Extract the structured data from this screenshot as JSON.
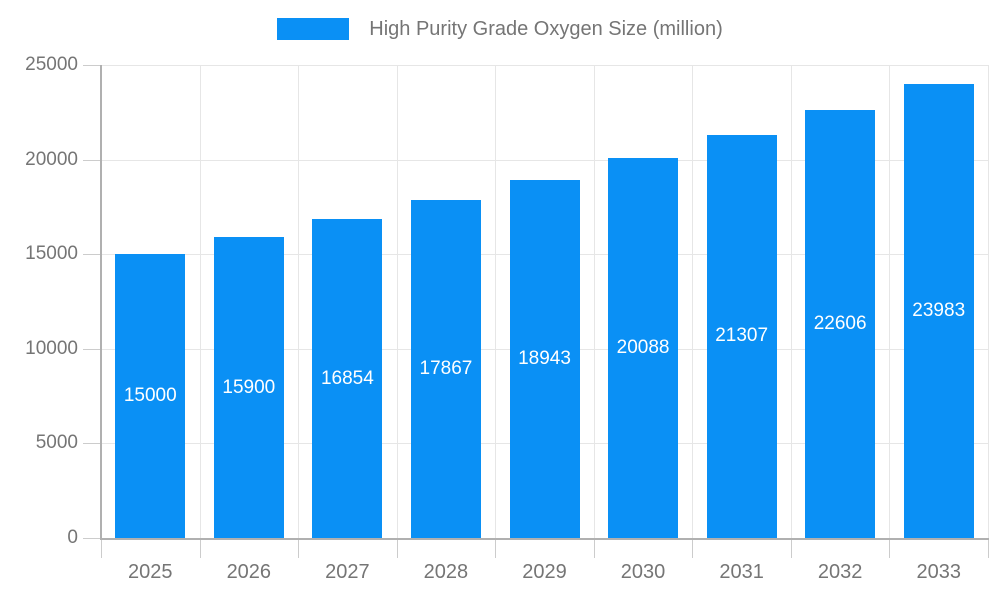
{
  "legend": {
    "label": "High Purity Grade Oxygen Size (million)"
  },
  "chart_data": {
    "type": "bar",
    "title": "High Purity Grade Oxygen Size (million)",
    "categories": [
      "2025",
      "2026",
      "2027",
      "2028",
      "2029",
      "2030",
      "2031",
      "2032",
      "2033"
    ],
    "values": [
      15000,
      15900,
      16854,
      17867,
      18943,
      20088,
      21307,
      22606,
      23983
    ],
    "xlabel": "",
    "ylabel": "",
    "ylim": [
      0,
      25000
    ],
    "yticks": [
      0,
      5000,
      10000,
      15000,
      20000,
      25000
    ],
    "grid": true,
    "legend_position": "top-center",
    "bar_labels": "inside-centered",
    "colors": {
      "bar": "#0a90f5",
      "bar_label": "#ffffff",
      "axis_line": "#b0b0b0",
      "gridline": "#e6e6e6",
      "tick_mark": "#cccccc",
      "tick_text": "#757575",
      "legend_text": "#757575",
      "background": "#ffffff"
    }
  }
}
